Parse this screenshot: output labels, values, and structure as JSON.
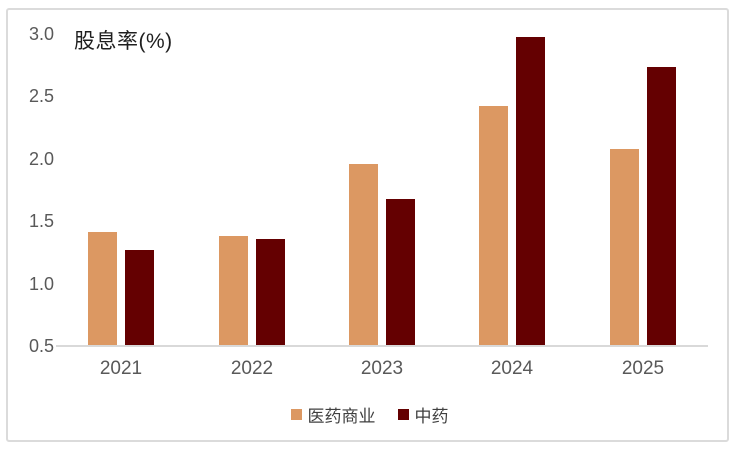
{
  "chart_data": {
    "type": "bar",
    "title": "股息率(%)",
    "categories": [
      "2021",
      "2022",
      "2023",
      "2024",
      "2025"
    ],
    "series": [
      {
        "name": "医药商业",
        "color": "#dc9862",
        "values": [
          1.41,
          1.38,
          1.96,
          2.42,
          2.08
        ]
      },
      {
        "name": "中药",
        "color": "#640001",
        "values": [
          1.27,
          1.36,
          1.68,
          2.97,
          2.73
        ]
      }
    ],
    "ylim": [
      0.5,
      3.0
    ],
    "yticks": [
      "0.5",
      "1.0",
      "1.5",
      "2.0",
      "2.5",
      "3.0"
    ],
    "xlabel": "",
    "ylabel": "",
    "grid": false,
    "legend_position": "bottom",
    "colors": {
      "axis_line": "#d9d9d9",
      "tick_text": "#595959",
      "legend_text": "#404040",
      "panel_border": "#dbdbdb",
      "title_text": "#1f1f1f"
    }
  }
}
